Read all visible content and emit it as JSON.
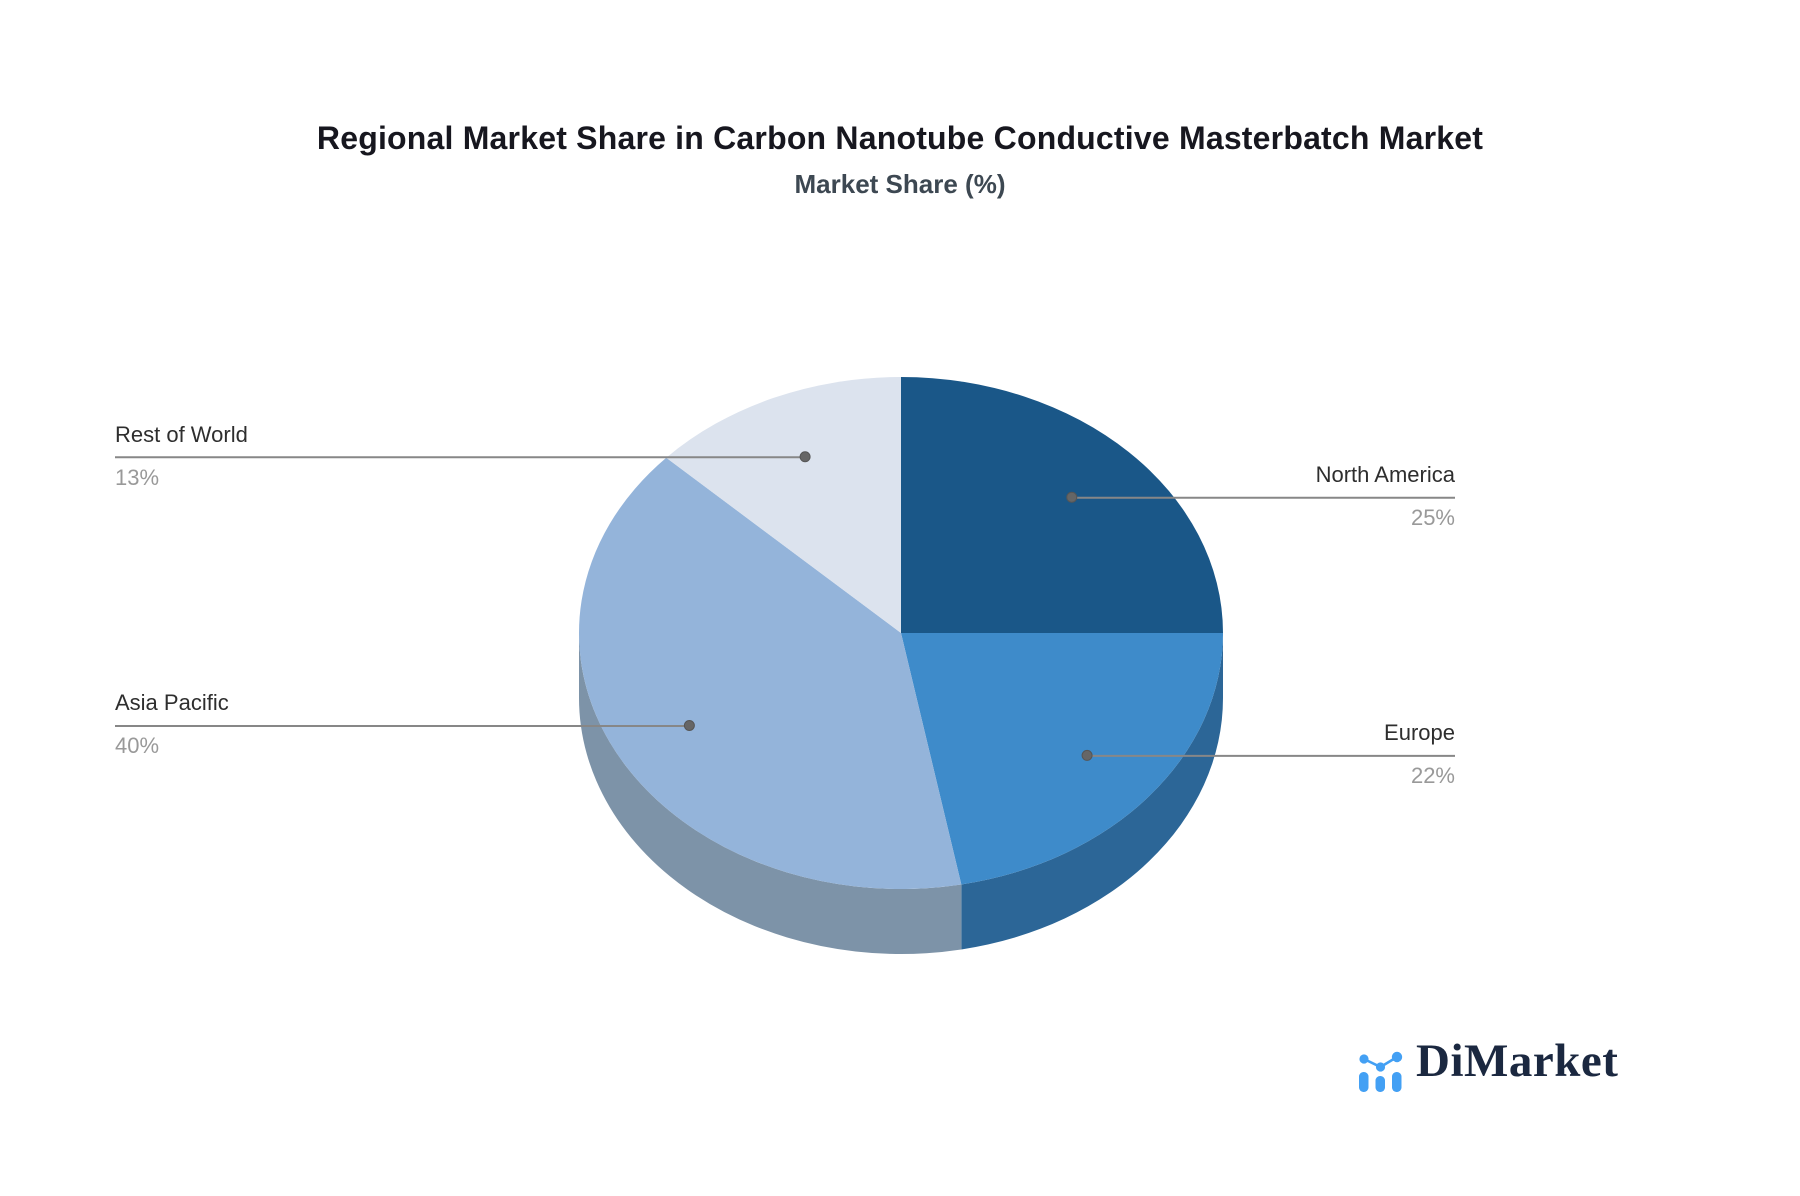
{
  "header": {
    "title": "Regional Market Share in Carbon Nanotube Conductive Masterbatch Market",
    "subtitle": "Market Share (%)"
  },
  "chart_data": {
    "type": "pie",
    "title": "Regional Market Share in Carbon Nanotube Conductive Masterbatch Market",
    "subtitle": "Market Share (%)",
    "unit": "%",
    "effect": "3d",
    "start_angle": "12-oclock",
    "direction": "clockwise",
    "slices": [
      {
        "label": "North America",
        "value": 25,
        "pct_label": "25%",
        "color": "#1a5788",
        "side_color": "#133f66"
      },
      {
        "label": "Europe",
        "value": 22,
        "pct_label": "22%",
        "color": "#3e8bca",
        "side_color": "#2c6697"
      },
      {
        "label": "Asia Pacific",
        "value": 40,
        "pct_label": "40%",
        "color": "#94b4da",
        "side_color": "#7d93a8"
      },
      {
        "label": "Rest of World",
        "value": 13,
        "pct_label": "13%",
        "color": "#dce3ee",
        "side_color": "#b6c0cf"
      }
    ],
    "leader_line_color": "#878787",
    "leader_dot_color": "#666666",
    "label_color": "#2e2e2e",
    "value_color": "#999999"
  },
  "branding": {
    "logo_text": "DiMarket",
    "logo_text_color": "#1b2840",
    "logo_icon": "bar-chart-logo-icon",
    "logo_icon_color": "#43a0f4"
  }
}
